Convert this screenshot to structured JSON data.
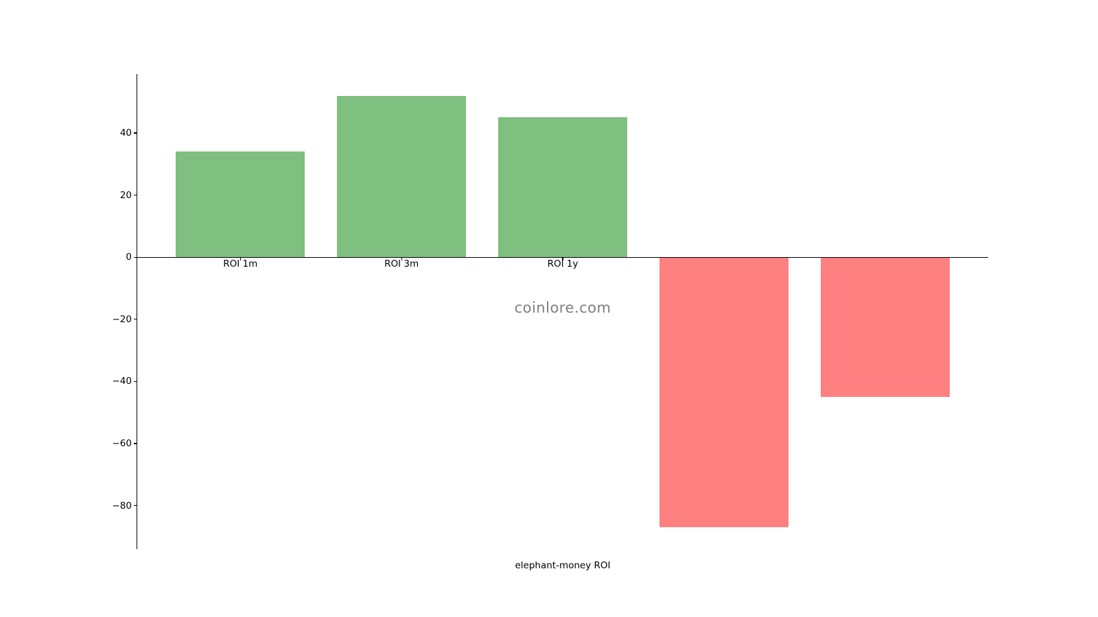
{
  "watermark": {
    "text": "coinlore.com"
  },
  "colors": {
    "positive_bar": "#7fbf7f",
    "negative_bar": "#ff8080",
    "axis": "#000000",
    "tick_text": "#000000",
    "watermark": "#7e7e7e",
    "background": "#ffffff"
  },
  "chart_data": {
    "type": "bar",
    "title": "",
    "xlabel": "elephant-money ROI",
    "ylabel": "",
    "categories": [
      "ROI 1m",
      "ROI 3m",
      "ROI 1y",
      "",
      ""
    ],
    "values": [
      34,
      52,
      45,
      -87,
      -45
    ],
    "bar_colors": [
      "#7fbf7f",
      "#7fbf7f",
      "#7fbf7f",
      "#ff8080",
      "#ff8080"
    ],
    "ylim": [
      -94,
      59
    ],
    "yticks": [
      40,
      20,
      0,
      -20,
      -40,
      -60,
      -80
    ],
    "grid": false,
    "legend": false,
    "x_tick_labels_hidden_by_bars": [
      3,
      4
    ]
  }
}
